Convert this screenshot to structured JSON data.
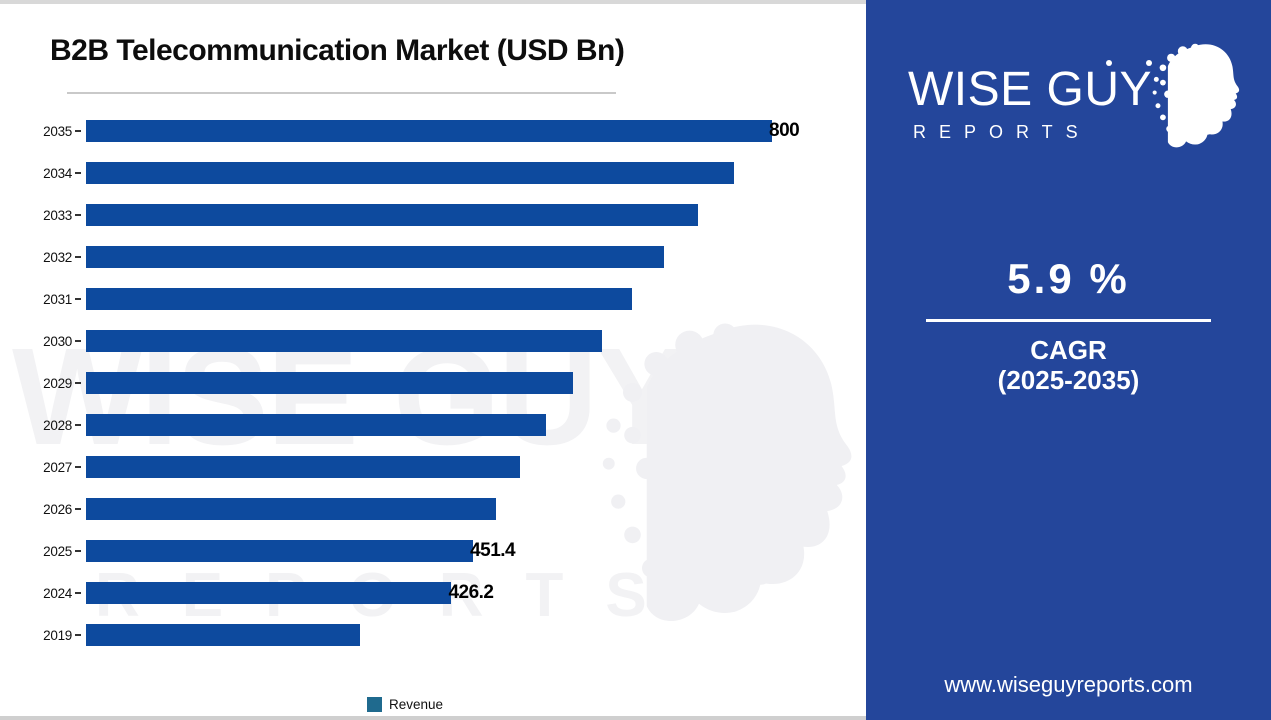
{
  "chart_data": {
    "type": "bar",
    "orientation": "horizontal",
    "title": "B2B Telecommunication Market (USD Bn)",
    "series_name": "Revenue",
    "categories": [
      "2035",
      "2034",
      "2033",
      "2032",
      "2031",
      "2030",
      "2029",
      "2028",
      "2027",
      "2026",
      "2025",
      "2024",
      "2019"
    ],
    "values": [
      800,
      756.1,
      714.0,
      674.2,
      636.6,
      601.2,
      567.7,
      536.1,
      506.2,
      478.0,
      451.4,
      426.2,
      320
    ],
    "value_labels": [
      "800",
      "",
      "",
      "",
      "",
      "",
      "",
      "",
      "",
      "",
      "451.4",
      "426.2",
      ""
    ],
    "xlim": [
      0,
      800
    ],
    "grid": false,
    "legend_position": "bottom-center",
    "legend_entries": [
      "Revenue"
    ],
    "bar_color": "#0d4a9e",
    "legend_swatch_color": "#1f6a8e"
  },
  "watermark": {
    "line1": "WISE GUY",
    "line2": "REPORTS"
  },
  "sidebar": {
    "background_color": "#24469b",
    "logo_line1": "WISE GUY",
    "logo_line2": "REPORTS",
    "cagr_value": "5.9 %",
    "cagr_line1": "CAGR",
    "cagr_line2": "(2025-2035)",
    "website": "www.wiseguyreports.com",
    "text_color": "#ffffff"
  }
}
